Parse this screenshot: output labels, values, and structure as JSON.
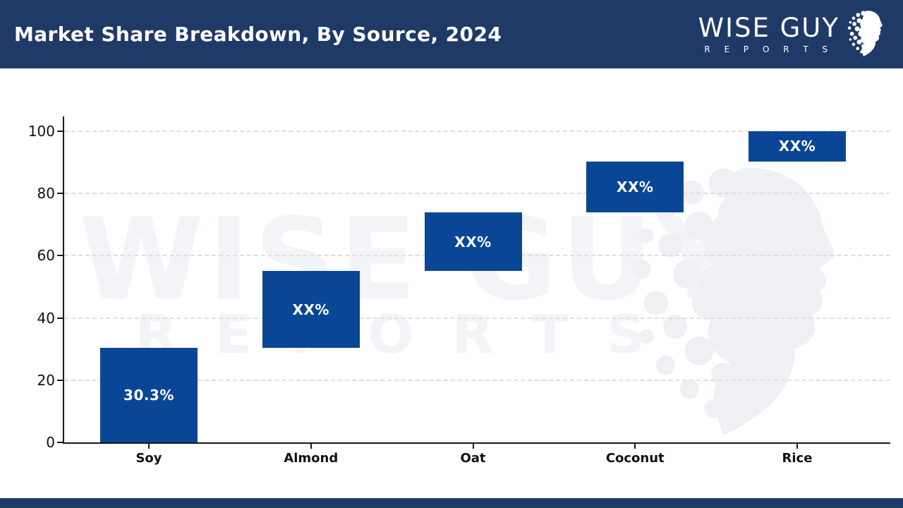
{
  "header": {
    "title": "Market Share Breakdown, By Source, 2024",
    "logo": {
      "name": "WISE GUY",
      "tagline": "R E P O R T S"
    }
  },
  "icons": {
    "logo_head": "head-of-dots-icon"
  },
  "watermark": {
    "line1": "WISE GUY",
    "line2": "R E P O R T S"
  },
  "chart_data": {
    "type": "bar",
    "subtype": "waterfall",
    "title": "Market Share Breakdown, By Source, 2024",
    "categories": [
      "Soy",
      "Almond",
      "Oat",
      "Coconut",
      "Rice"
    ],
    "segments": [
      {
        "category": "Soy",
        "start": 0,
        "end": 30.3,
        "label": "30.3%"
      },
      {
        "category": "Almond",
        "start": 30.3,
        "end": 55.0,
        "label": "XX%"
      },
      {
        "category": "Oat",
        "start": 55.0,
        "end": 73.9,
        "label": "XX%"
      },
      {
        "category": "Coconut",
        "start": 73.9,
        "end": 90.3,
        "label": "XX%"
      },
      {
        "category": "Rice",
        "start": 90.3,
        "end": 100,
        "label": "XX%"
      }
    ],
    "xlabel": "",
    "ylabel": "",
    "yticks": [
      0,
      20,
      40,
      60,
      80,
      100
    ],
    "ylim": [
      0,
      105
    ],
    "grid": "horizontal-dashed",
    "legend": "none",
    "bar_color": "#0a4696"
  },
  "colors": {
    "header_bg": "#1f3a66",
    "footer_bg": "#1f3a66",
    "bar": "#0a4696",
    "axis": "#1a1a1a",
    "gridline": "#dedede",
    "watermark": "#f3f4f7",
    "bar_label_text": "#ffffff"
  }
}
